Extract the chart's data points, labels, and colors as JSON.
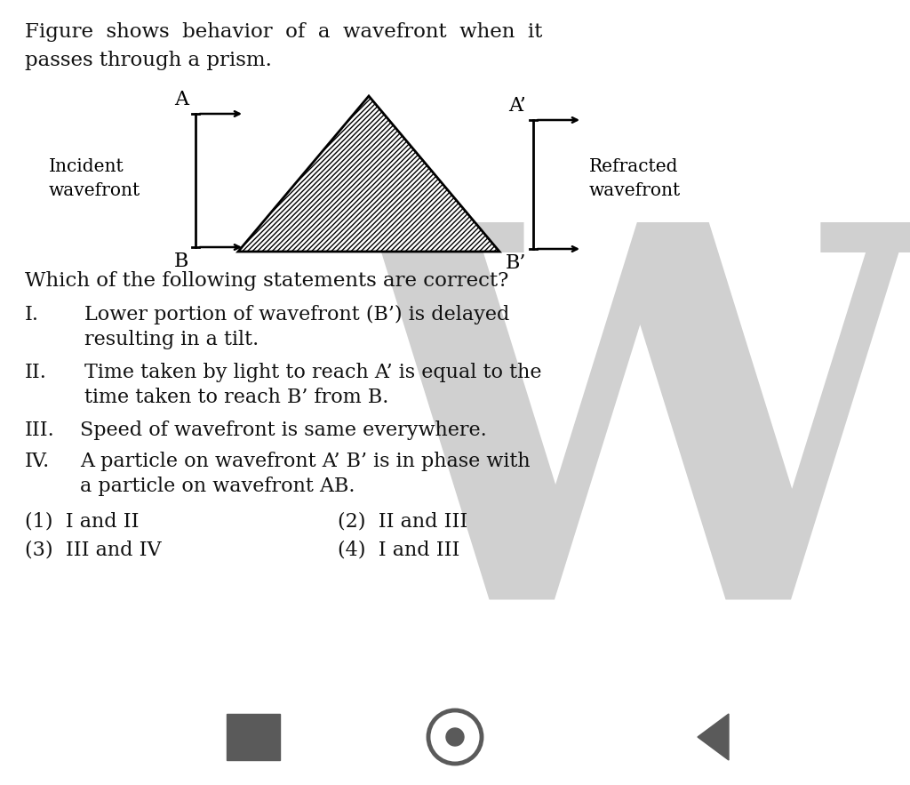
{
  "bg_color": "#ffffff",
  "title_line1": "Figure  shows  behavior  of  a  wavefront  when  it",
  "title_line2": "passes through a prism.",
  "question": "Which of the following statements are correct?",
  "statements": [
    [
      "I.",
      "Lower portion of wavefront (B’) is delayed",
      "resulting in a tilt."
    ],
    [
      "II.",
      "Time taken by light to reach A’ is equal to the",
      "time taken to reach B’ from B."
    ],
    [
      "III.",
      "Speed of wavefront is same everywhere."
    ],
    [
      "IV.",
      "A particle on wavefront A’ B’ is in phase with",
      "a particle on wavefront AB."
    ]
  ],
  "options_row1": [
    "(1)  I and II",
    "(2)  II and III"
  ],
  "options_row2": [
    "(3)  III and IV",
    "(4)  I and III"
  ],
  "watermark_color": "#d0d0d0"
}
